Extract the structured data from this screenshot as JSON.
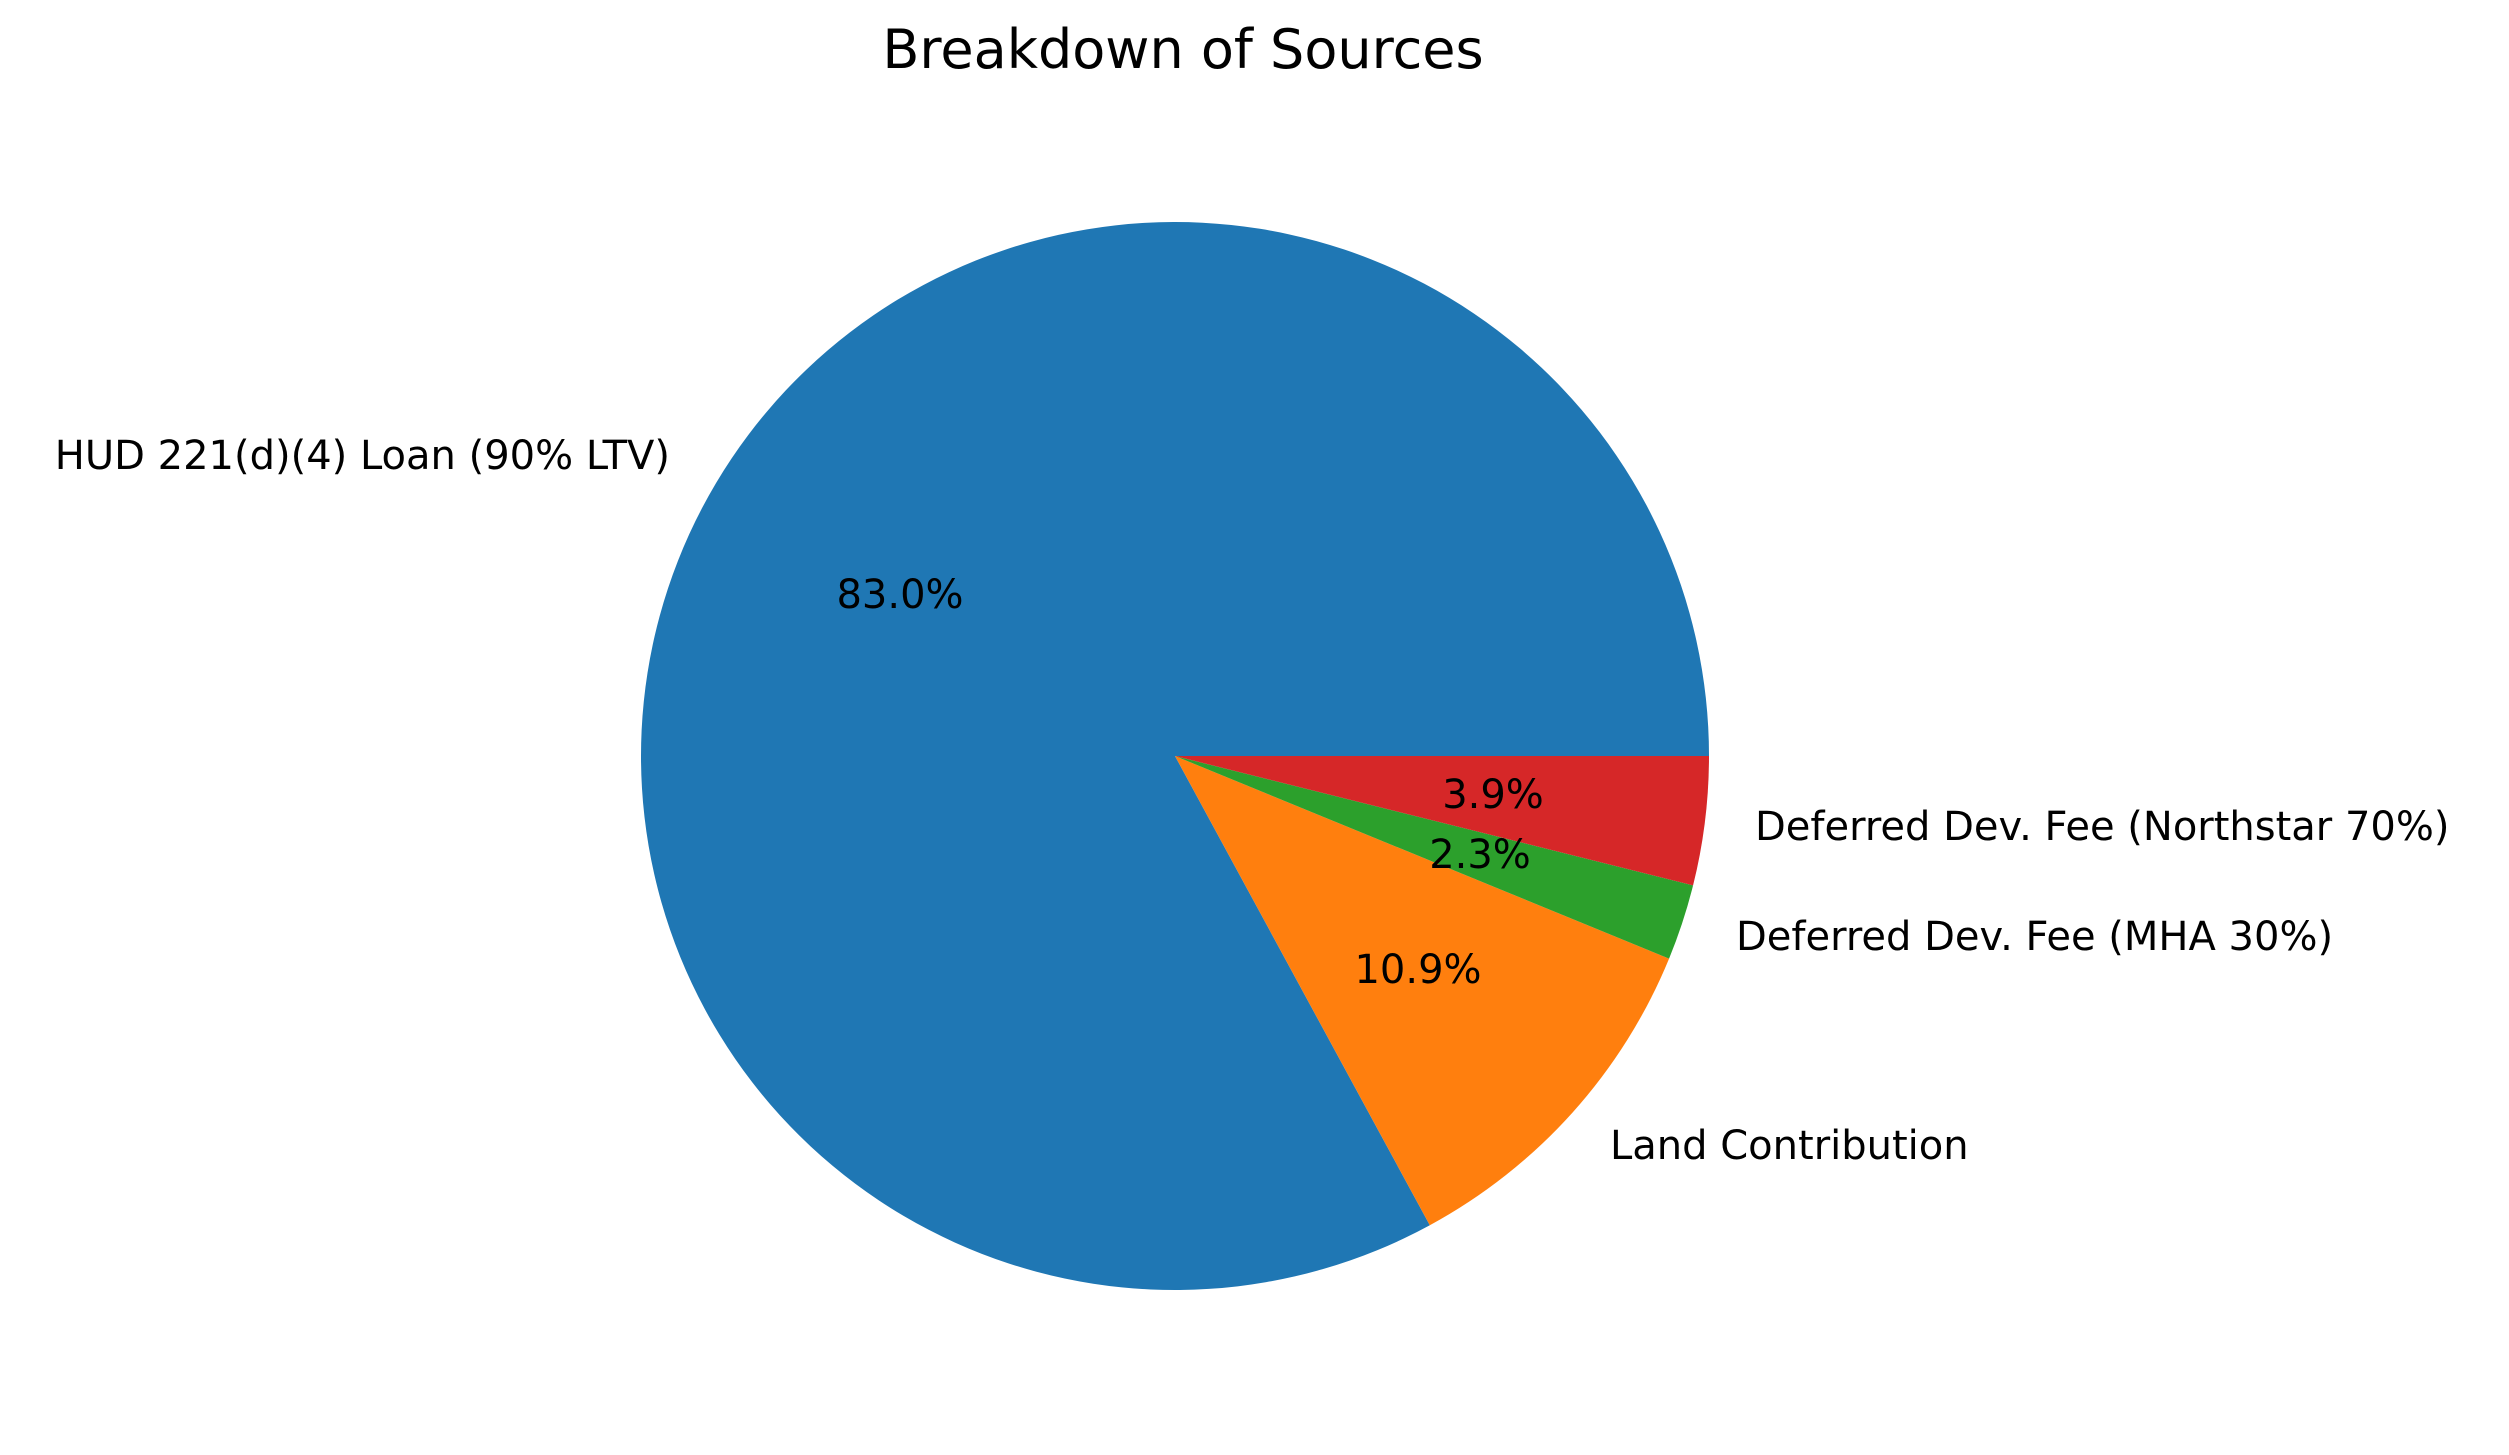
{
  "chart_data": {
    "type": "pie",
    "title": "Breakdown of Sources",
    "labels": [
      "HUD 221(d)(4) Loan (90% LTV)",
      "Land Contribution",
      "Deferred Dev. Fee (MHA 30%)",
      "Deferred Dev. Fee (Northstar 70%)"
    ],
    "values": [
      83.0,
      10.9,
      2.3,
      3.9
    ],
    "pct_labels": [
      "83.0%",
      "10.9%",
      "2.3%",
      "3.9%"
    ],
    "colors": [
      "#1f77b4",
      "#ff7f0e",
      "#2ca02c",
      "#d62728"
    ],
    "start_angle_deg": 0,
    "direction": "counterclockwise",
    "legend": "none",
    "label_placement": "outside",
    "pct_placement": "inside"
  }
}
